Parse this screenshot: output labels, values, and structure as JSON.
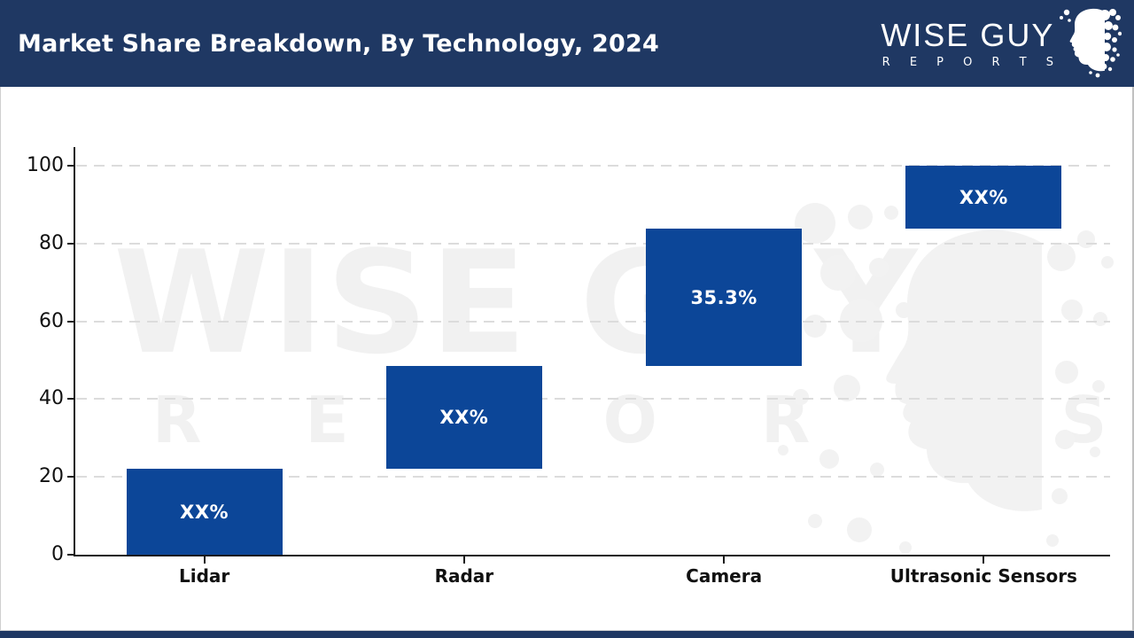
{
  "header": {
    "title": "Market Share Breakdown, By Technology, 2024",
    "logo": {
      "line1": "WISE GUY",
      "line2": "R E P O R T S",
      "face_icon": "head-profile-made-of-dots"
    }
  },
  "watermark": {
    "line1": "WISE GUY",
    "line2": "R E P O R T S",
    "face_icon": "head-profile-made-of-dots"
  },
  "colors": {
    "header_bg": "#1f3863",
    "bar": "#0c4698",
    "grid": "#dcdcdc",
    "axis": "#1a1a1a",
    "watermark": "#f1f1f1",
    "bar_label_text": "#ffffff"
  },
  "chart_data": {
    "type": "bar",
    "subtype": "floating-waterfall-bars",
    "title": "Market Share Breakdown, By Technology, 2024",
    "categories": [
      "Lidar",
      "Radar",
      "Camera",
      "Ultrasonic Sensors"
    ],
    "bars": [
      {
        "category": "Lidar",
        "start": 0,
        "end": 22,
        "label": "XX%"
      },
      {
        "category": "Radar",
        "start": 22,
        "end": 48.5,
        "label": "XX%"
      },
      {
        "category": "Camera",
        "start": 48.5,
        "end": 83.8,
        "label": "35.3%"
      },
      {
        "category": "Ultrasonic Sensors",
        "start": 83.8,
        "end": 100,
        "label": "XX%"
      }
    ],
    "xlabel": "",
    "ylabel": "",
    "ylim": [
      0,
      105
    ],
    "yticks": [
      0,
      20,
      40,
      60,
      80,
      100
    ],
    "grid": "horizontal-dashed",
    "legend": "none"
  }
}
